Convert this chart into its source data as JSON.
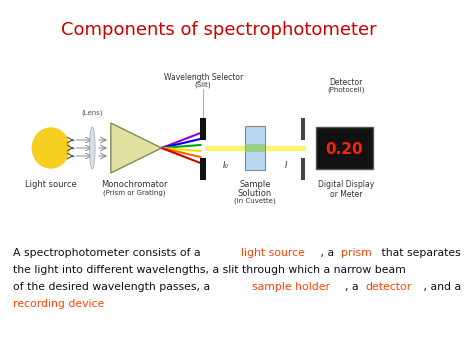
{
  "title": "Components of spectrophotometer",
  "title_color": "#cc0000",
  "title_fontsize": 13,
  "bg_color": "#ffffff",
  "labels": {
    "light_source": "Light source",
    "monochromator_line1": "Monochromator",
    "monochromator_line2": "(Prism or Grating)",
    "sample_line1": "Sample",
    "sample_line2": "Solution",
    "sample_line3": "(in Cuvette)",
    "detector_label": "Detector",
    "detector_sub": "(Photocell)",
    "digital_display": "Digital Display\nor Meter",
    "wavelength_selector": "Wavelength Selector",
    "wavelength_sub": "(Slit)",
    "lens": "(Lens)",
    "i0": "I₀",
    "i": "I"
  },
  "readout_value": "0.20",
  "body_lines": [
    [
      {
        "text": "A spectrophotometer consists of a ",
        "color": "#111111"
      },
      {
        "text": "light source",
        "color": "#ff4400"
      },
      {
        "text": " , a ",
        "color": "#111111"
      },
      {
        "text": "prism",
        "color": "#ff4400"
      },
      {
        "text": " that separates",
        "color": "#111111"
      }
    ],
    [
      {
        "text": "the light into different wavelengths, a slit through which a narrow beam",
        "color": "#111111"
      }
    ],
    [
      {
        "text": "of the desired wavelength passes, a ",
        "color": "#111111"
      },
      {
        "text": "sample holder",
        "color": "#ff4400"
      },
      {
        "text": ", a ",
        "color": "#111111"
      },
      {
        "text": "detector",
        "color": "#ff4400"
      },
      {
        "text": " , and a",
        "color": "#111111"
      }
    ],
    [
      {
        "text": "recording device",
        "color": "#ff4400"
      }
    ]
  ]
}
